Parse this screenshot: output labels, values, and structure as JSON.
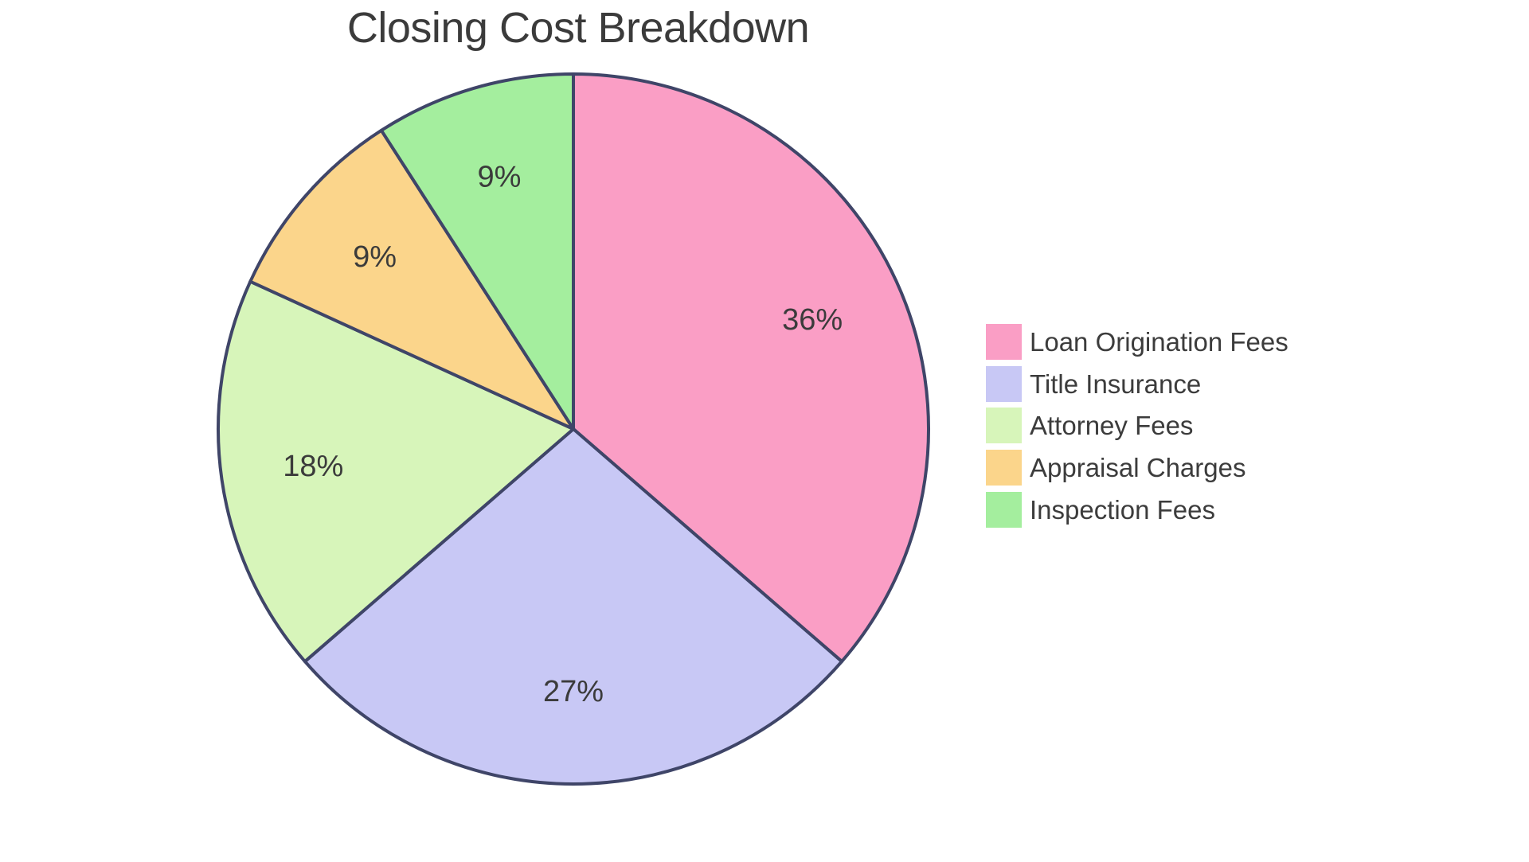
{
  "page": {
    "background_color": "#FFFFFF"
  },
  "chart_data": {
    "type": "pie",
    "title": "Closing Cost Breakdown",
    "labels": [
      "Loan Origination Fees",
      "Title Insurance",
      "Attorney Fees",
      "Appraisal Charges",
      "Inspection Fees"
    ],
    "values": [
      36,
      27,
      18,
      9,
      9
    ],
    "pct_labels": [
      "36%",
      "27%",
      "18%",
      "9%",
      "9%"
    ],
    "colors": [
      "#FA9EC5",
      "#C8C8F5",
      "#D7F5BA",
      "#FBD58B",
      "#A4EE9E"
    ],
    "outline_color": "#3F4568",
    "text_color": "#3B3B3B",
    "start_angle": "top",
    "direction": "clockwise",
    "legend_position": "right",
    "grid": false
  }
}
